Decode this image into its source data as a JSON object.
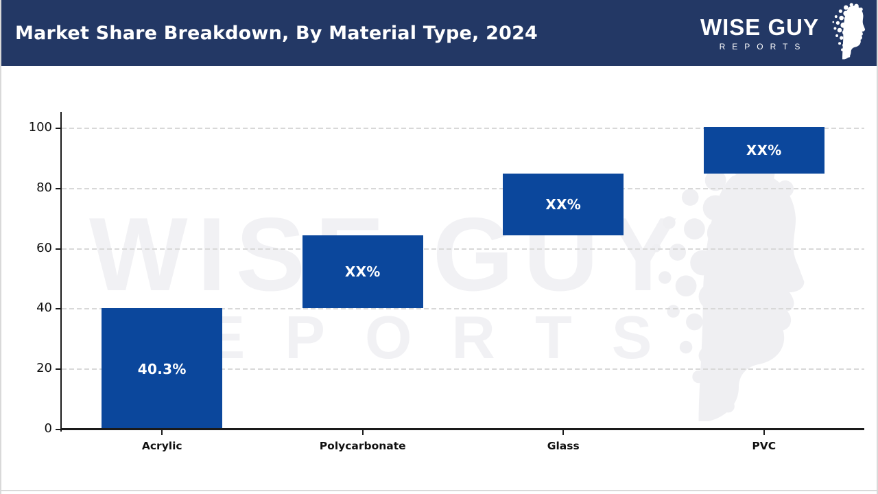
{
  "header": {
    "logo": {
      "line1": "WISE GUY",
      "line2": "REPORTS"
    },
    "bg_color": "#233865"
  },
  "watermark": {
    "line1": "WISE GUY",
    "line2": "REPORTS"
  },
  "chart_data": {
    "type": "bar",
    "subtype": "waterfall",
    "title": "Market Share Breakdown, By Material Type, 2024",
    "categories": [
      "Acrylic",
      "Polycarbonate",
      "Glass",
      "PVC"
    ],
    "segments": [
      [
        0,
        40.3
      ],
      [
        40.3,
        64.5
      ],
      [
        64.5,
        84.9
      ],
      [
        84.9,
        100.4
      ]
    ],
    "bar_labels": [
      "40.3%",
      "XX%",
      "XX%",
      "XX%"
    ],
    "xlabel": "",
    "ylabel": "",
    "ylim": [
      0,
      100
    ],
    "yticks": [
      0,
      20,
      40,
      60,
      80,
      100
    ],
    "grid": "horizontal-dashed",
    "legend": "none",
    "bar_color": "#0B479C",
    "bar_label_color": "#ffffff"
  }
}
